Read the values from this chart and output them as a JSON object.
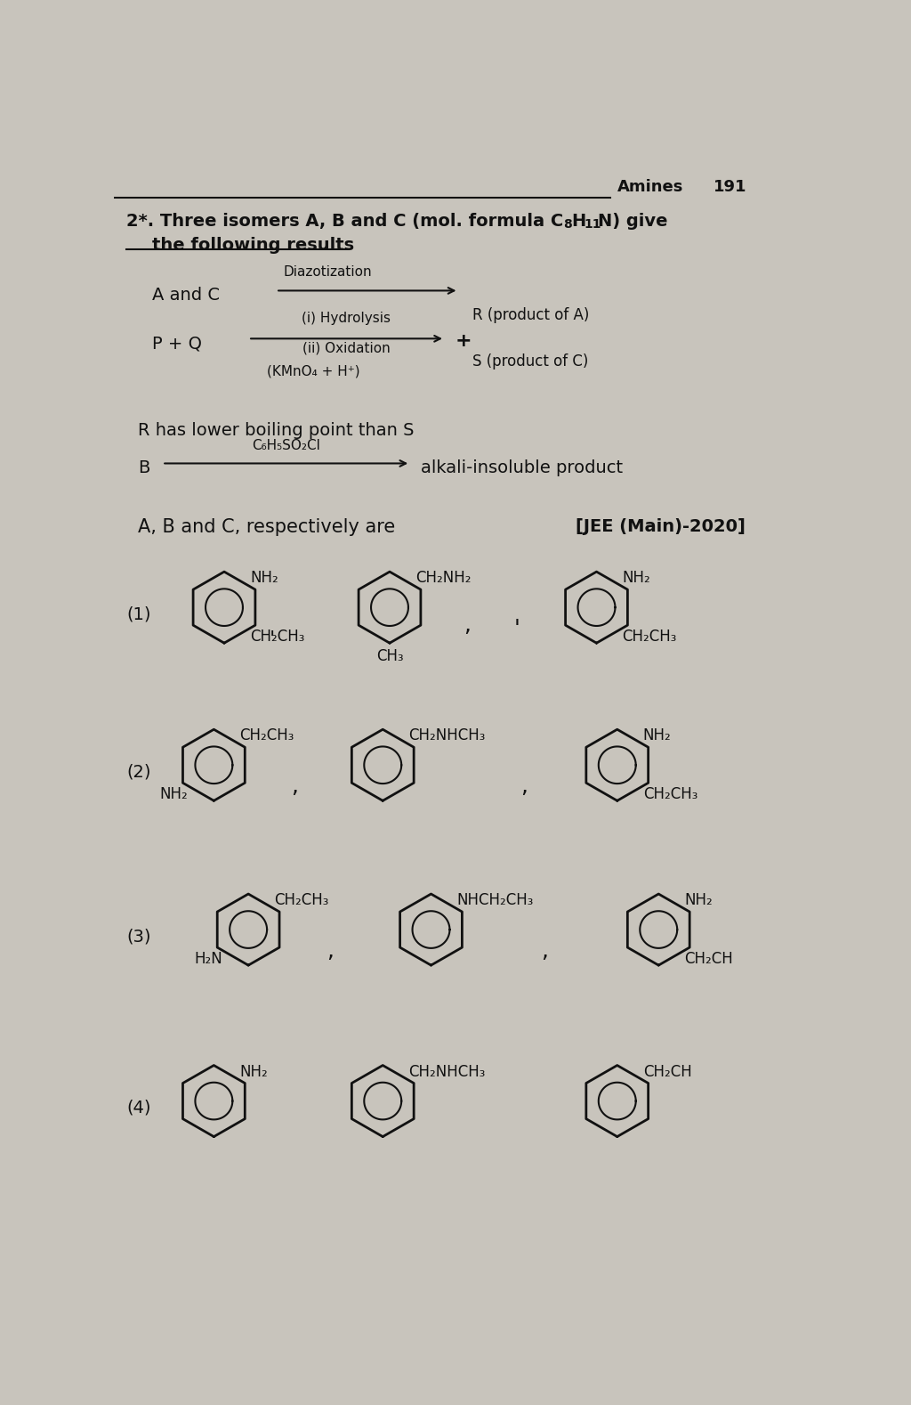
{
  "bg_color": "#c8c4bc",
  "text_color": "#111111",
  "header": "Amines   191",
  "title1": "2*. Three isomers A, B and C (mol. formula C",
  "title_sub1": "8",
  "title_h": "H",
  "title_sub2": "11",
  "title_end": "N) give",
  "title2": "the following results",
  "rxn1_left": "A and C",
  "rxn1_label": "Diazotization",
  "rxn2_left": "P + Q",
  "rxn2_top": "(i) Hydrolysis",
  "rxn2_bot": "(ii) Oxidation",
  "rxn2_reagent": "(KMnO₄ + H⁺)",
  "rxn2_prod_top": "R (product of A)",
  "rxn2_prod_bot": "S (product of C)",
  "note": "R has lower boiling point than S",
  "rxn3_left": "B",
  "rxn3_label": "C₆H₅SO₂Cl",
  "rxn3_right": "alkali-insoluble product",
  "concl": "A, B and C, respectively are",
  "jee": "[JEE (Main)-2020]",
  "opt1_label": "(1)",
  "opt2_label": "(2)",
  "opt3_label": "(3)",
  "opt4_label": "(4)"
}
